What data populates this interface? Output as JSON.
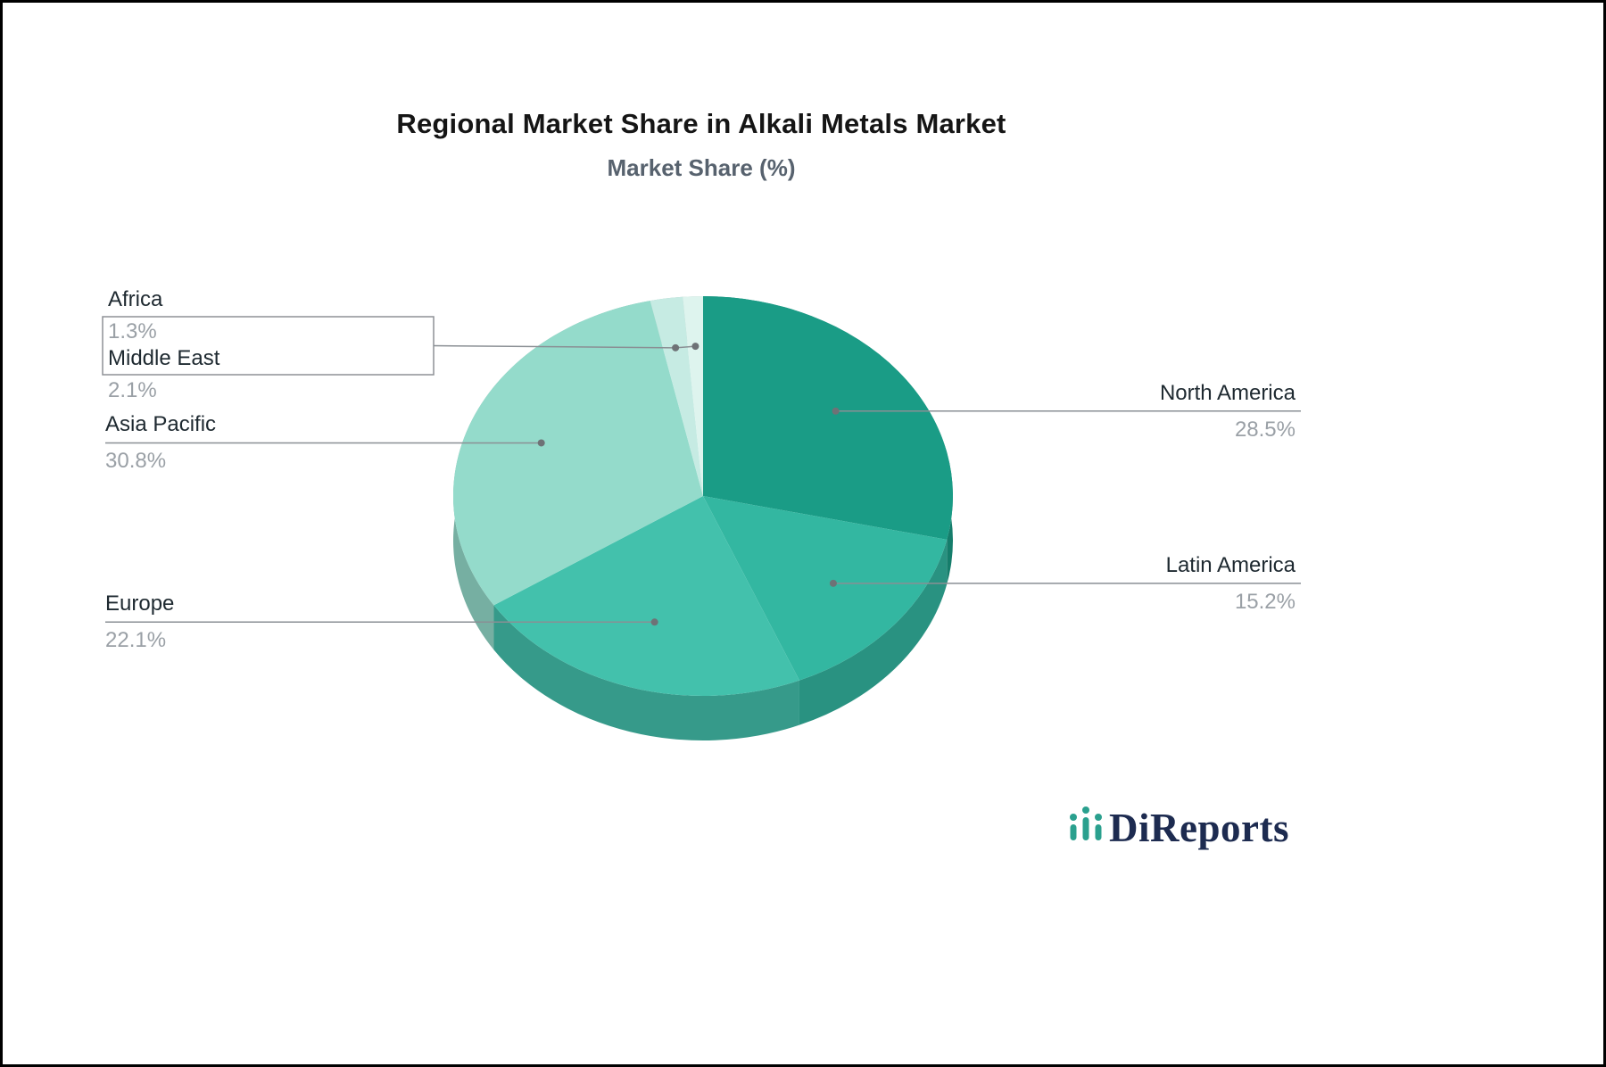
{
  "header": {
    "title": "Regional Market Share in Alkali Metals Market",
    "subtitle": "Market Share (%)"
  },
  "chart_data": {
    "type": "pie",
    "title": "Regional Market Share in Alkali Metals Market",
    "subtitle": "Market Share (%)",
    "unit": "%",
    "total": 100,
    "direction": "clockwise",
    "start_angle_deg": 0,
    "legend_position": "none",
    "labels_style": {
      "name_color": "#1e2930",
      "value_color": "#9aa0a6",
      "line_color": "#8a8f94",
      "dot_color": "#6e7276",
      "box_border_color": "#8d9196"
    },
    "slices": [
      {
        "label": "North America",
        "value": 28.5,
        "display": "28.5%",
        "color": "#1a9c86",
        "callout_side": "right"
      },
      {
        "label": "Latin America",
        "value": 15.2,
        "display": "15.2%",
        "color": "#33b7a1",
        "callout_side": "right"
      },
      {
        "label": "Europe",
        "value": 22.1,
        "display": "22.1%",
        "color": "#43c1ac",
        "callout_side": "left"
      },
      {
        "label": "Asia Pacific",
        "value": 30.8,
        "display": "30.8%",
        "color": "#94dbcb",
        "callout_side": "left"
      },
      {
        "label": "Middle East",
        "value": 2.1,
        "display": "2.1%",
        "color": "#c6ebe3",
        "callout_side": "left-box"
      },
      {
        "label": "Africa",
        "value": 1.3,
        "display": "1.3%",
        "color": "#def4ee",
        "callout_side": "left-box"
      }
    ]
  },
  "brand": {
    "wordmark": "DiReports",
    "icon": "bar-chart-icon",
    "icon_color": "#2aa08e",
    "wordmark_color": "#1d2b50"
  }
}
